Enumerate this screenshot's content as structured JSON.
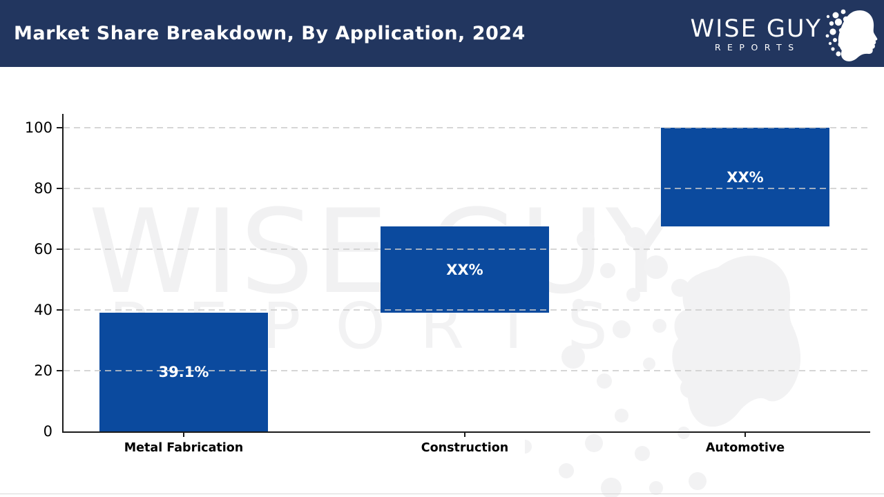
{
  "header": {
    "title": "Market Share Breakdown, By Application, 2024",
    "logo": {
      "line1": "WISE GUY",
      "line2": "REPORTS"
    }
  },
  "watermark": {
    "line1": "WISE GUY",
    "line2": "REPORTS"
  },
  "chart_data": {
    "type": "bar",
    "subtype": "waterfall",
    "title": "Market Share Breakdown, By Application, 2024",
    "categories": [
      "Metal Fabrication",
      "Construction",
      "Automotive"
    ],
    "series": [
      {
        "name": "Market Share",
        "segments": [
          {
            "category": "Metal Fabrication",
            "start": 0,
            "end": 39.1,
            "label": "39.1%"
          },
          {
            "category": "Construction",
            "start": 39.1,
            "end": 67.4,
            "label": "XX%"
          },
          {
            "category": "Automotive",
            "start": 67.4,
            "end": 100,
            "label": "XX%"
          }
        ]
      }
    ],
    "ylim": [
      0,
      104.5
    ],
    "yticks": [
      0,
      20,
      40,
      60,
      80,
      100
    ],
    "xlabel": "",
    "ylabel": "",
    "grid": "horizontal-dashed",
    "legend": "none",
    "bar_color": "#0b4a9e",
    "bar_label_color": "#ffffff",
    "axis_color": "#1a1a1a",
    "header_color": "#22365F"
  }
}
